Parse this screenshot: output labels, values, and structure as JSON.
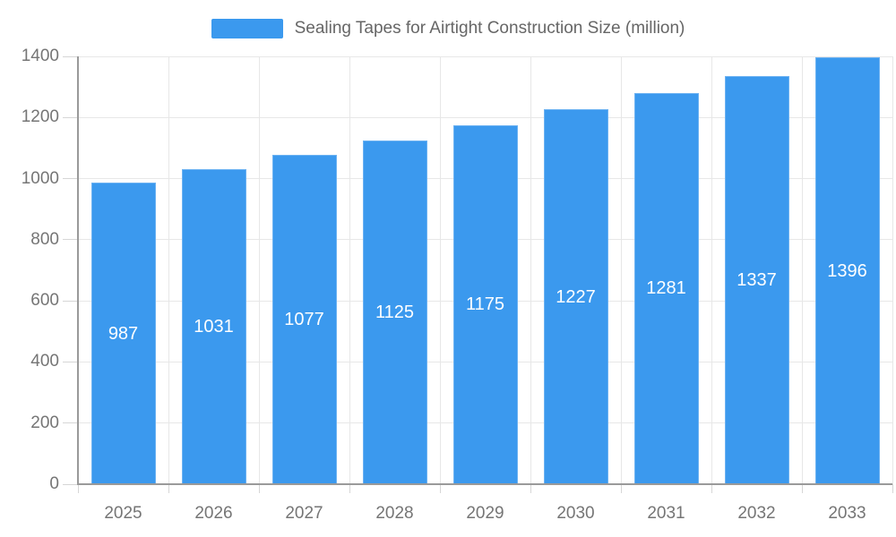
{
  "chart_data": {
    "type": "bar",
    "title": "Sealing Tapes for Airtight Construction Size (million)",
    "categories": [
      "2025",
      "2026",
      "2027",
      "2028",
      "2029",
      "2030",
      "2031",
      "2032",
      "2033"
    ],
    "values": [
      987,
      1031,
      1077,
      1125,
      1175,
      1227,
      1281,
      1337,
      1396
    ],
    "xlabel": "",
    "ylabel": "",
    "ylim": [
      0,
      1400
    ],
    "yticks": [
      0,
      200,
      400,
      600,
      800,
      1000,
      1200,
      1400
    ],
    "legend_position": "top-center",
    "grid": true,
    "bar_labels_inside": true,
    "colors": {
      "bar": "#3b99ee",
      "axis": "#9a9a9a",
      "grid": "#e7e7e7",
      "tick": "#d6d6d6",
      "axis_label": "#757575",
      "title": "#666666",
      "bar_label": "#ffffff",
      "background": "#ffffff"
    }
  }
}
